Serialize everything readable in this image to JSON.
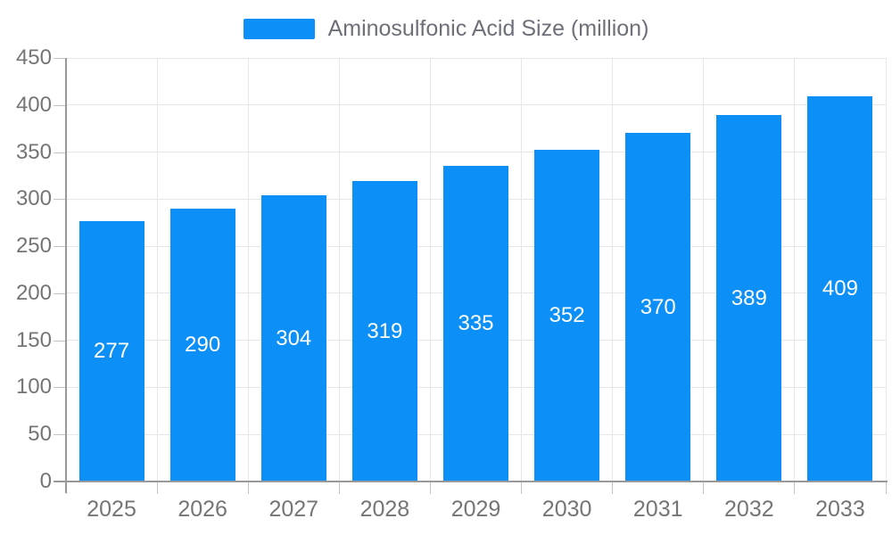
{
  "legend": {
    "label": "Aminosulfonic Acid Size (million)"
  },
  "colors": {
    "bar": "#0c90f8",
    "axis_line": "#999999",
    "grid_line": "#e4e7ec",
    "axis_text": "#757575",
    "legend_text": "#6e7079",
    "value_label": "#ffffff"
  },
  "chart_data": {
    "type": "bar",
    "title": "Aminosulfonic Acid Size (million)",
    "categories": [
      "2025",
      "2026",
      "2027",
      "2028",
      "2029",
      "2030",
      "2031",
      "2032",
      "2033"
    ],
    "values": [
      277,
      290,
      304,
      319,
      335,
      352,
      370,
      389,
      409
    ],
    "xlabel": "",
    "ylabel": "",
    "ylim": [
      0,
      450
    ],
    "ytick_step": 50,
    "yticks": [
      0,
      50,
      100,
      150,
      200,
      250,
      300,
      350,
      400,
      450
    ],
    "grid": "on",
    "legend_position": "top-center",
    "value_labels": "inside-center-white"
  }
}
